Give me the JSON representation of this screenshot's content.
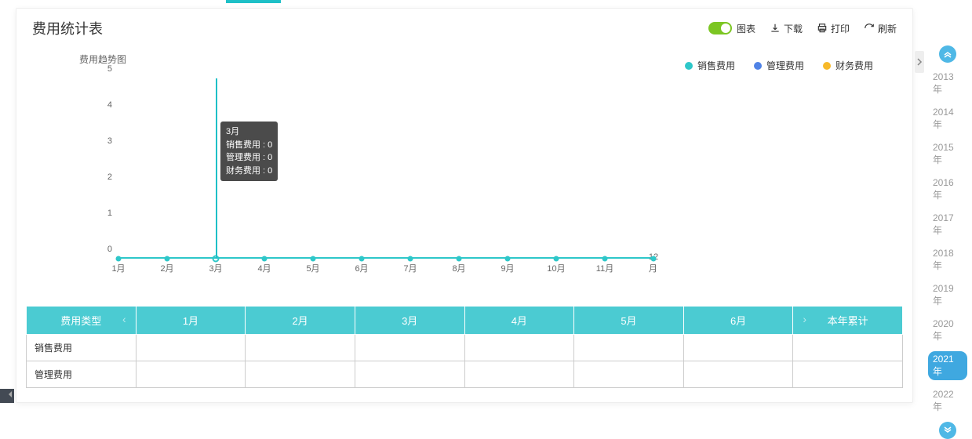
{
  "header": {
    "title": "费用统计表",
    "toggle_label": "图表",
    "download_label": "下载",
    "print_label": "打印",
    "refresh_label": "刷新"
  },
  "chart": {
    "title": "费用趋势图",
    "legend": [
      {
        "label": "销售费用",
        "color": "#2ec7c9"
      },
      {
        "label": "管理费用",
        "color": "#5083e6"
      },
      {
        "label": "财务费用",
        "color": "#f7b929"
      }
    ],
    "y_ticks": [
      "0",
      "1",
      "2",
      "3",
      "4",
      "5"
    ],
    "x_labels": [
      "1月",
      "2月",
      "3月",
      "4月",
      "5月",
      "6月",
      "7月",
      "8月",
      "9月",
      "10月",
      "11月",
      "12月"
    ],
    "series_color": "#2ec7c9",
    "hover_index": 2,
    "tooltip": {
      "title": "3月",
      "lines": [
        "销售费用 : 0",
        "管理费用 : 0",
        "财务费用 : 0"
      ]
    },
    "ylim": [
      0,
      5
    ],
    "background_color": "#ffffff"
  },
  "table": {
    "header_bg": "#4bcbd2",
    "row_label_header": "费用类型",
    "month_headers": [
      "1月",
      "2月",
      "3月",
      "4月",
      "5月",
      "6月"
    ],
    "total_header": "本年累计",
    "rows": [
      {
        "label": "销售费用"
      },
      {
        "label": "管理费用"
      }
    ]
  },
  "years": {
    "items": [
      "2013年",
      "2014年",
      "2015年",
      "2016年",
      "2017年",
      "2018年",
      "2019年",
      "2020年",
      "2021年",
      "2022年"
    ],
    "active_index": 8
  }
}
